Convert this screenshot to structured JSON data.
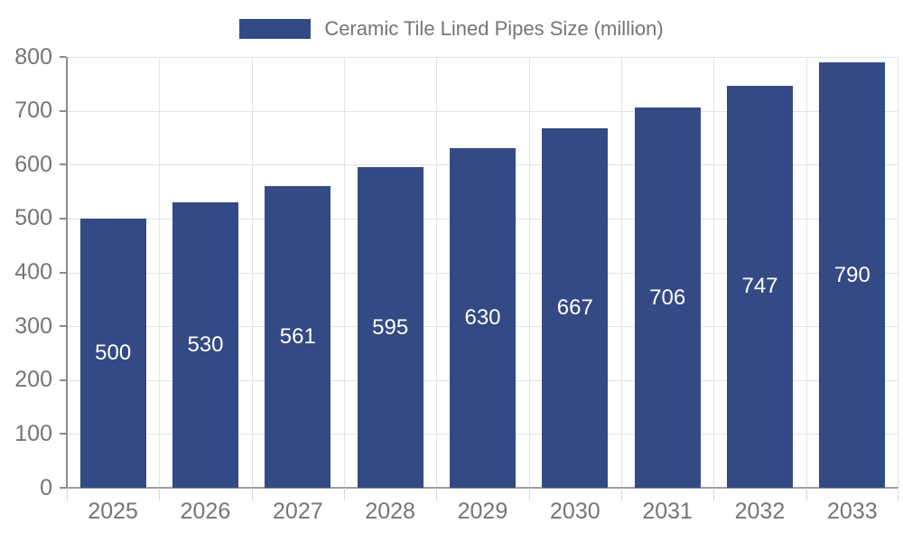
{
  "chart_data": {
    "type": "bar",
    "title": "Ceramic Tile Lined Pipes Size (million)",
    "series_name": "Ceramic Tile Lined Pipes Size (million)",
    "categories": [
      "2025",
      "2026",
      "2027",
      "2028",
      "2029",
      "2030",
      "2031",
      "2032",
      "2033"
    ],
    "values": [
      500,
      530,
      561,
      595,
      630,
      667,
      706,
      747,
      790
    ],
    "xlabel": "",
    "ylabel": "",
    "ylim": [
      0,
      800
    ],
    "ytick_step": 100,
    "ytick_labels": [
      "0",
      "100",
      "200",
      "300",
      "400",
      "500",
      "600",
      "700",
      "800"
    ],
    "grid": true,
    "legend_position": "top",
    "bar_color": "#344a84",
    "bar_label_color": "#ffffff",
    "axis_text_color": "#757575",
    "grid_color": "#e3e3e3",
    "y_axis_line_color": "#8c8c8c",
    "x_axis_line_color": "#9e9e9e",
    "boundary_tick_color": "#d6d6d6"
  }
}
